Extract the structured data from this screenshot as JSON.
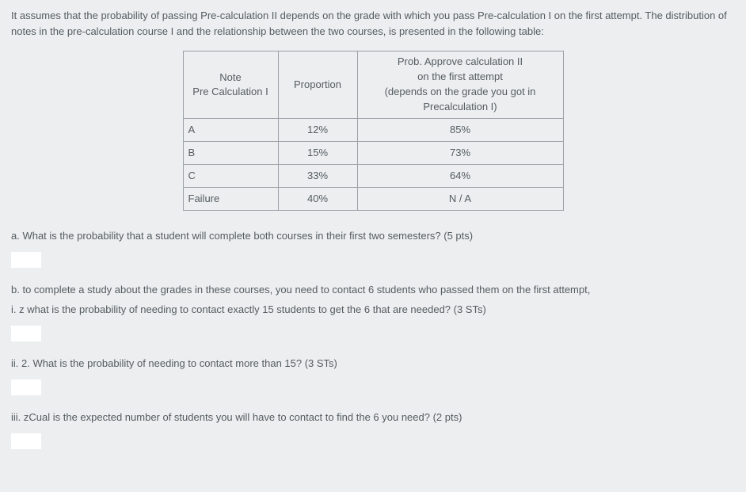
{
  "intro": "It assumes that the probability of passing Pre-calculation II depends on the grade with which you pass Pre-calculation I on the first attempt. The distribution of notes in the pre-calculation course I and the relationship between the two courses, is presented in the following table:",
  "table": {
    "headers": {
      "note_l1": "Note",
      "note_l2": "Pre Calculation I",
      "proportion": "Proportion",
      "prob_l1": "Prob. Approve calculation II",
      "prob_l2": "on the first attempt",
      "prob_l3": "(depends on the grade you got in",
      "prob_l4": "Precalculation I)"
    },
    "rows": [
      {
        "grade": "A",
        "proportion": "12%",
        "prob": "85%"
      },
      {
        "grade": "B",
        "proportion": "15%",
        "prob": "73%"
      },
      {
        "grade": "C",
        "proportion": "33%",
        "prob": "64%"
      },
      {
        "grade": "Failure",
        "proportion": "40%",
        "prob": "N / A"
      }
    ]
  },
  "questions": {
    "a": "a. What is the probability that a student will complete both courses in their first two semesters? (5 pts)",
    "b": "b. to complete a study about the grades in these courses, you need to contact 6 students who passed them on the first attempt,",
    "b_i": "i. z what is the probability of needing to contact exactly 15 students to get the 6 that are needed? (3 STs)",
    "b_ii": "ii. 2. What is the probability of needing to contact more than 15? (3 STs)",
    "b_iii": "iii. zCual is the expected number of students you will have to contact to find the 6 you need? (2 pts)"
  },
  "colors": {
    "page_bg": "#eceeef",
    "text": "#555c61",
    "border": "#9aa1a7",
    "input_bg": "#ffffff"
  }
}
